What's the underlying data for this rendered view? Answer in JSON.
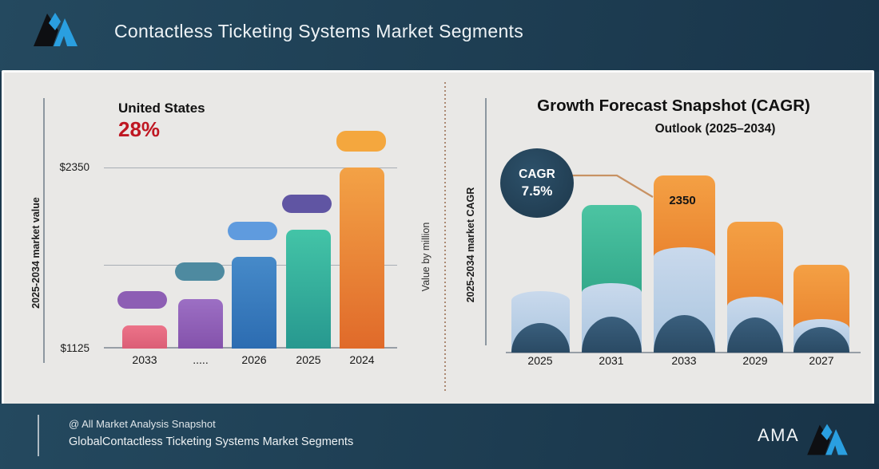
{
  "header": {
    "title": "Contactless Ticketing Systems Market Segments",
    "logo": "ama-mountain-logo"
  },
  "footer": {
    "line1": "@ All Market Analysis Snapshot",
    "line2": "GlobalContactless Ticketing Systems Market Segments",
    "brand": "AMA",
    "logo": "ama-mountain-logo"
  },
  "colors": {
    "band": "#1f4055",
    "panel_bg": "#e9e8e6",
    "panel_border": "#fbfbfa",
    "highlight_red": "#bf1722",
    "bubble_navy": "#223f54",
    "leader_line": "#c89263",
    "divider_dots": "#ab8871",
    "grid": "#a8aeb5"
  },
  "chart_data": [
    {
      "type": "bar",
      "panel": "left",
      "title": "United States",
      "highlight": "28%",
      "ylabel_left": "2025-2034 market value",
      "ylabel_right": "Value by million",
      "categories": [
        "2033",
        ".....",
        "2026",
        "2025",
        "2024"
      ],
      "ylim": [
        1125,
        2350
      ],
      "yticks": [
        {
          "label": "$2350",
          "value": 2350
        },
        {
          "label": "$1125",
          "value": 1125
        }
      ],
      "gridline_values": [
        2350,
        1690
      ],
      "series": [
        {
          "name": "market value (estimated from axis)",
          "values": [
            1280,
            1460,
            1745,
            1930,
            2350
          ],
          "colors": [
            [
              "#ec7389",
              "#db5e76"
            ],
            [
              "#9c6fc4",
              "#8452ab"
            ],
            [
              "#468ac9",
              "#2c6cb1"
            ],
            [
              "#43c4a7",
              "#27988f"
            ],
            [
              "#f3a246",
              "#e06a2a"
            ]
          ]
        },
        {
          "name": "floating segment (estimated range)",
          "ranges": [
            [
              1395,
              1515
            ],
            [
              1584,
              1708
            ],
            [
              1859,
              1983
            ],
            [
              2043,
              2167
            ],
            [
              2458,
              2598
            ]
          ],
          "colors": [
            "#8d5eb4",
            "#4e8aa0",
            "#5f9bde",
            "#6055a3",
            "#f4a73e"
          ]
        }
      ]
    },
    {
      "type": "stacked-bar",
      "panel": "right",
      "title": "Growth Forecast Snapshot (CAGR)",
      "subtitle": "Outlook (2025–2034)",
      "ylabel_left": "2025-2034 market CAGR",
      "categories": [
        "2025",
        "2031",
        "2033",
        "2029",
        "2027"
      ],
      "annotation": {
        "line1": "CAGR",
        "line2": "7.5%",
        "points_to": "2033"
      },
      "data_label": {
        "text": "2350",
        "category": "2033"
      },
      "series": [
        {
          "name": "base",
          "colors": [
            "#3a5f7d",
            "#2a4a64"
          ],
          "values": [
            37,
            45,
            47,
            44,
            32
          ]
        },
        {
          "name": "mid",
          "colors": [
            "#c9d9ec",
            "#aac5df"
          ],
          "values": [
            40,
            42,
            85,
            26,
            10
          ]
        },
        {
          "name": "top",
          "colors": [
            null,
            [
              "#4cc4a2",
              "#33a98b"
            ],
            [
              "#f4a044",
              "#ea8530"
            ],
            [
              "#f4a044",
              "#ea8530"
            ],
            [
              "#f4a044",
              "#ea8530"
            ]
          ],
          "values": [
            0,
            98,
            90,
            94,
            68
          ]
        }
      ]
    }
  ]
}
